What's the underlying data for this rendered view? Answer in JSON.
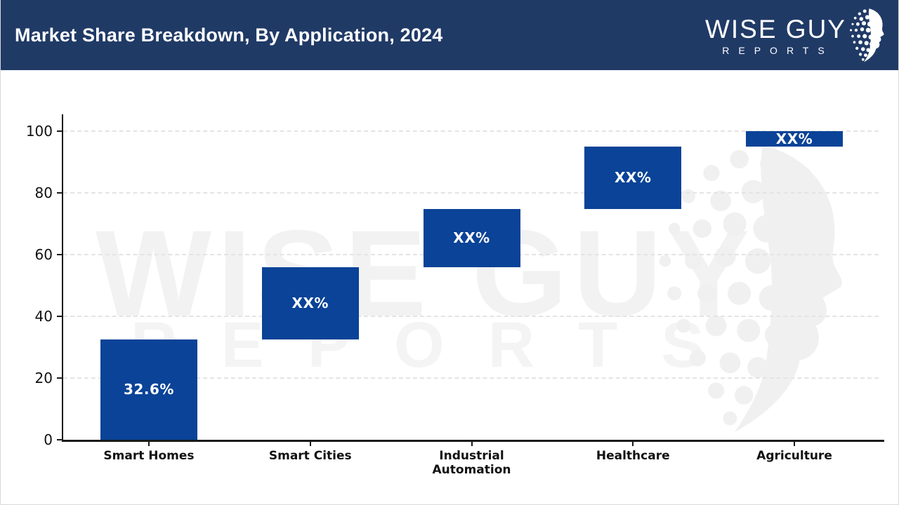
{
  "header": {
    "title": "Market Share Breakdown, By Application, 2024",
    "bg_color": "#203a66",
    "logo": {
      "line1": "WISE GUY",
      "line2": "REPORTS"
    }
  },
  "watermark": {
    "line1": "WISE GUY",
    "line2": "REPORTS"
  },
  "chart_data": {
    "type": "bar",
    "subtype": "waterfall",
    "title": "Market Share Breakdown, By Application, 2024",
    "categories": [
      "Smart Homes",
      "Smart Cities",
      "Industrial Automation",
      "Healthcare",
      "Agriculture"
    ],
    "segments": [
      {
        "category": "Smart Homes",
        "start": 0,
        "end": 32.6,
        "label": "32.6%"
      },
      {
        "category": "Smart Cities",
        "start": 32.6,
        "end": 55.9,
        "label": "XX%"
      },
      {
        "category": "Industrial Automation",
        "start": 55.9,
        "end": 74.8,
        "label": "XX%"
      },
      {
        "category": "Healthcare",
        "start": 74.8,
        "end": 95,
        "label": "XX%"
      },
      {
        "category": "Agriculture",
        "start": 95,
        "end": 100,
        "label": "XX%"
      }
    ],
    "yticks": [
      0,
      20,
      40,
      60,
      80,
      100
    ],
    "ylim": [
      0,
      105
    ],
    "xlabel": "",
    "ylabel": "",
    "grid": "dashed-horizontal",
    "legend": "none",
    "bar_color": "#0a4397",
    "bar_label_color": "#ffffff",
    "axis_color": "#1a1a1a",
    "gridline_color": "#e4e4e4"
  }
}
